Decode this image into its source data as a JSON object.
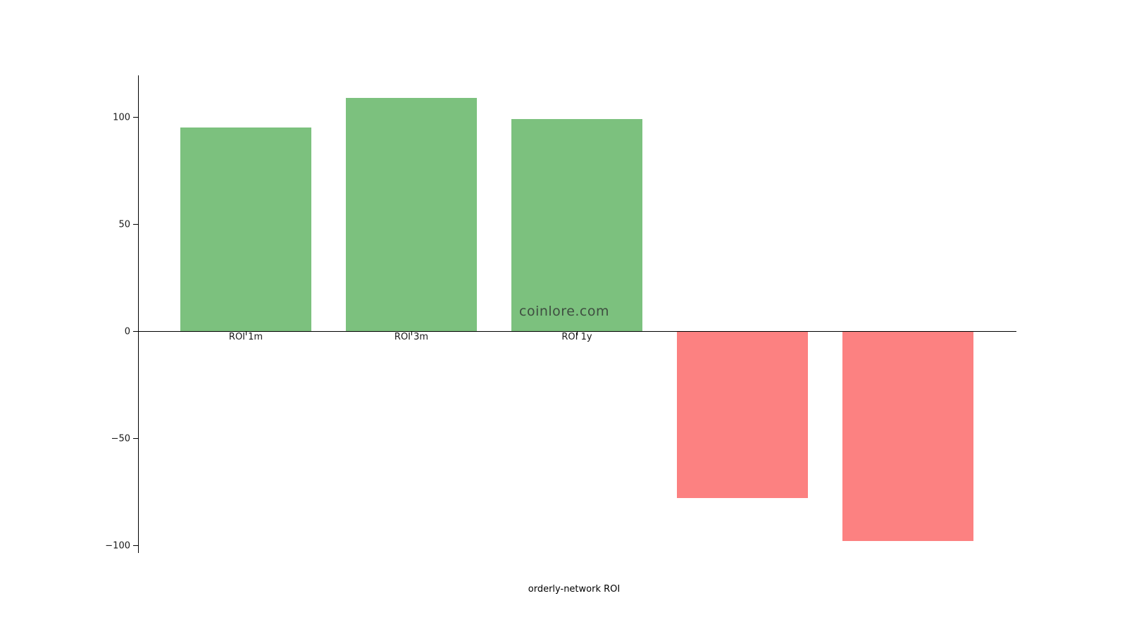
{
  "page": {
    "background_color": "#ffffff"
  },
  "chart_data": {
    "type": "bar",
    "title": "orderly-network ROI",
    "watermark": "coinlore.com",
    "categories": [
      "ROI 1m",
      "ROI 3m",
      "ROI 1y",
      "",
      ""
    ],
    "values": [
      95,
      109,
      99,
      -78,
      -98
    ],
    "series": [
      {
        "name": "orderly-network ROI",
        "values": [
          95,
          109,
          99,
          -78,
          -98
        ]
      }
    ],
    "positive_color": "#7cc17e",
    "negative_color": "#fc8181",
    "axis_color": "#000000",
    "text_color": "#1a1a1a",
    "watermark_color": "#3f4e41",
    "yticks": [
      {
        "value": 100,
        "label": "100"
      },
      {
        "value": 50,
        "label": "50"
      },
      {
        "value": 0,
        "label": "0"
      },
      {
        "value": -50,
        "label": "−50"
      },
      {
        "value": -100,
        "label": "−100"
      }
    ],
    "ylim": [
      -103.5,
      119.5
    ],
    "xlabel": "",
    "ylabel": "",
    "grid": false,
    "legend": "none"
  }
}
